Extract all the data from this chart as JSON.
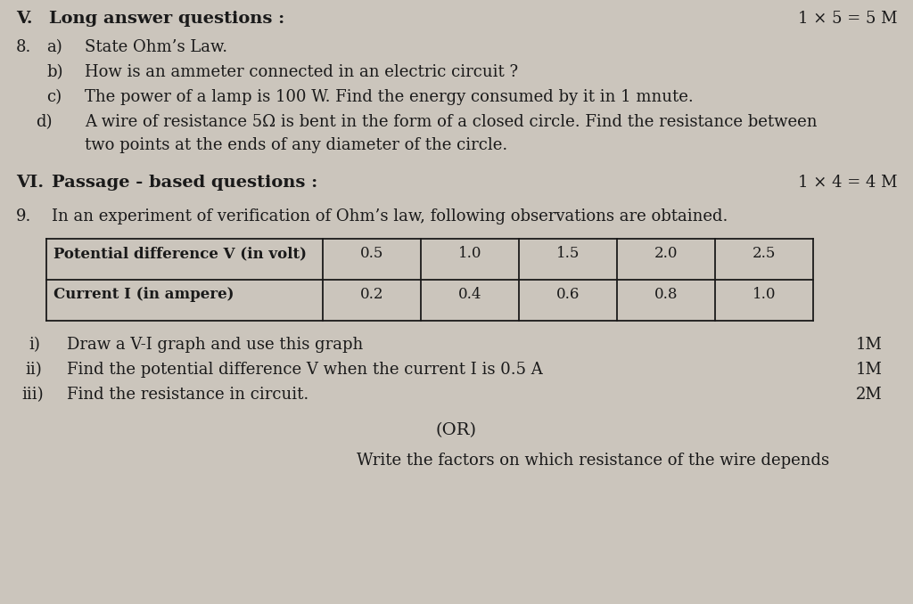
{
  "bg_color": "#cbc5bc",
  "text_color": "#1a1a1a",
  "title_v": "V.",
  "title_v_label": "Long answer questions :",
  "marks_v": "1 × 5 = 5 M",
  "q8": "8.",
  "q8a": "a)",
  "q8a_text": "State Ohm’s Law.",
  "q8b": "b)",
  "q8b_text": "How is an ammeter connected in an electric circuit ?",
  "q8c": "c)",
  "q8c_text": "The power of a lamp is 100 W. Find the energy consumed by it in 1 mnute.",
  "q8d": "d)",
  "q8d_text1": "A wire of resistance 5Ω is bent in the form of a closed circle. Find the resistance between",
  "q8d_text2": "two points at the ends of any diameter of the circle.",
  "title_vi": "VI.",
  "title_vi_label": "Passage - based questions :",
  "marks_vi": "1 × 4 = 4 M",
  "q9": "9.",
  "q9_text": "In an experiment of verification of Ohm’s law, following observations are obtained.",
  "table_header": [
    "Potential difference V (in volt)",
    "0.5",
    "1.0",
    "1.5",
    "2.0",
    "2.5"
  ],
  "table_row2": [
    "Current I (in ampere)",
    "0.2",
    "0.4",
    "0.6",
    "0.8",
    "1.0"
  ],
  "qi": "i)",
  "qi_text": "Draw a V-I graph and use this graph",
  "qi_marks": "1M",
  "qii": "ii)",
  "qii_text": "Find the potential difference V when the current I is 0.5 A",
  "qii_marks": "1M",
  "qiii": "iii)",
  "qiii_text": "Find the resistance in circuit.",
  "qiii_marks": "2M",
  "or_text": "(OR)",
  "or_subtext": "Write the factors on which resistance of the wire depends",
  "font_family": "DejaVu Serif"
}
